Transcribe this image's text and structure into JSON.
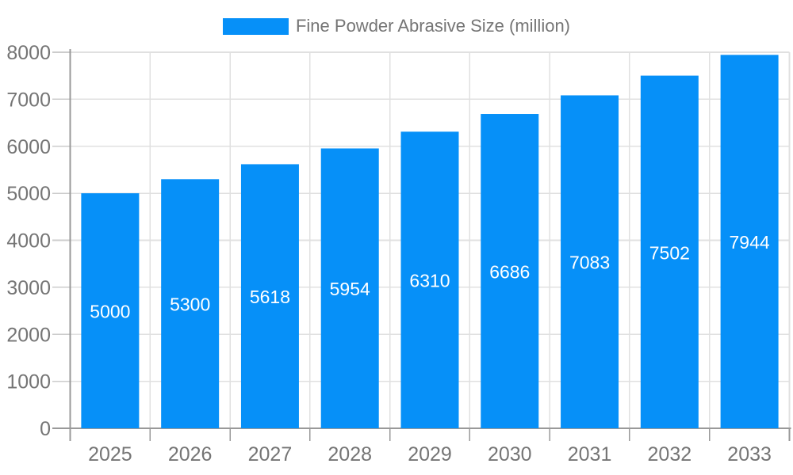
{
  "page": {
    "background_color": "#ffffff"
  },
  "legend": {
    "label": "Fine Powder Abrasive Size (million)",
    "swatch_color": "#0690F8"
  },
  "chart_data": {
    "type": "bar",
    "title": "Fine Powder Abrasive Size (million)",
    "series_name": "Fine Powder Abrasive Size (million)",
    "categories": [
      "2025",
      "2026",
      "2027",
      "2028",
      "2029",
      "2030",
      "2031",
      "2032",
      "2033"
    ],
    "values": [
      5000,
      5300,
      5618,
      5954,
      6310,
      6686,
      7083,
      7502,
      7944
    ],
    "xlabel": "",
    "ylabel": "",
    "ylim": [
      0,
      8000
    ],
    "ytick_step": 1000,
    "ytick_labels": [
      "0",
      "1000",
      "2000",
      "3000",
      "4000",
      "5000",
      "6000",
      "7000",
      "8000"
    ],
    "grid": true,
    "legend_position": "top-center",
    "bar_color": "#0690F8",
    "bar_label_color": "#ffffff",
    "gridline_color": "#e0e0e0",
    "axis_color": "#999999",
    "y_tick_color": "#cccccc",
    "tick_label_color": "#757575"
  }
}
